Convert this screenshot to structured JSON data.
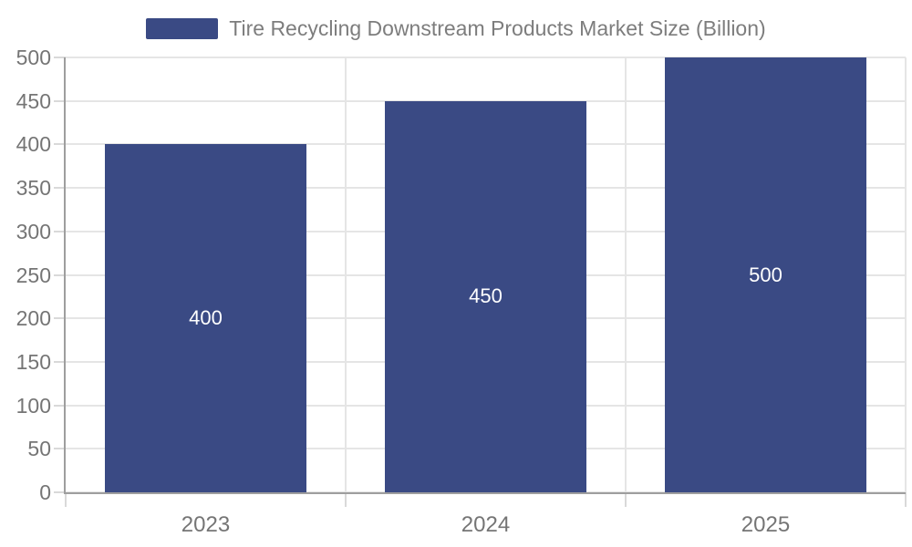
{
  "legend": {
    "position": "top",
    "series_label": "Tire Recycling Downstream Products Market Size (Billion)"
  },
  "chart_data": {
    "type": "bar",
    "title": "Tire Recycling Downstream Products Market Size (Billion)",
    "categories": [
      "2023",
      "2024",
      "2025"
    ],
    "values": [
      400,
      450,
      500
    ],
    "bar_labels": [
      "400",
      "450",
      "500"
    ],
    "xlabel": "",
    "ylabel": "",
    "ylim": [
      0,
      500
    ],
    "yticks": [
      0,
      50,
      100,
      150,
      200,
      250,
      300,
      350,
      400,
      450,
      500
    ],
    "grid": true,
    "legend_position": "top"
  },
  "colors": {
    "bar": "#3A4A84",
    "bar_value_text": "#ffffff",
    "grid_line": "#e5e5e5",
    "axis_line": "#9e9e9e",
    "tick_mark": "#d9d9d9",
    "tick_text": "#757575",
    "legend_text": "#7d7d7d",
    "background": "#ffffff"
  }
}
